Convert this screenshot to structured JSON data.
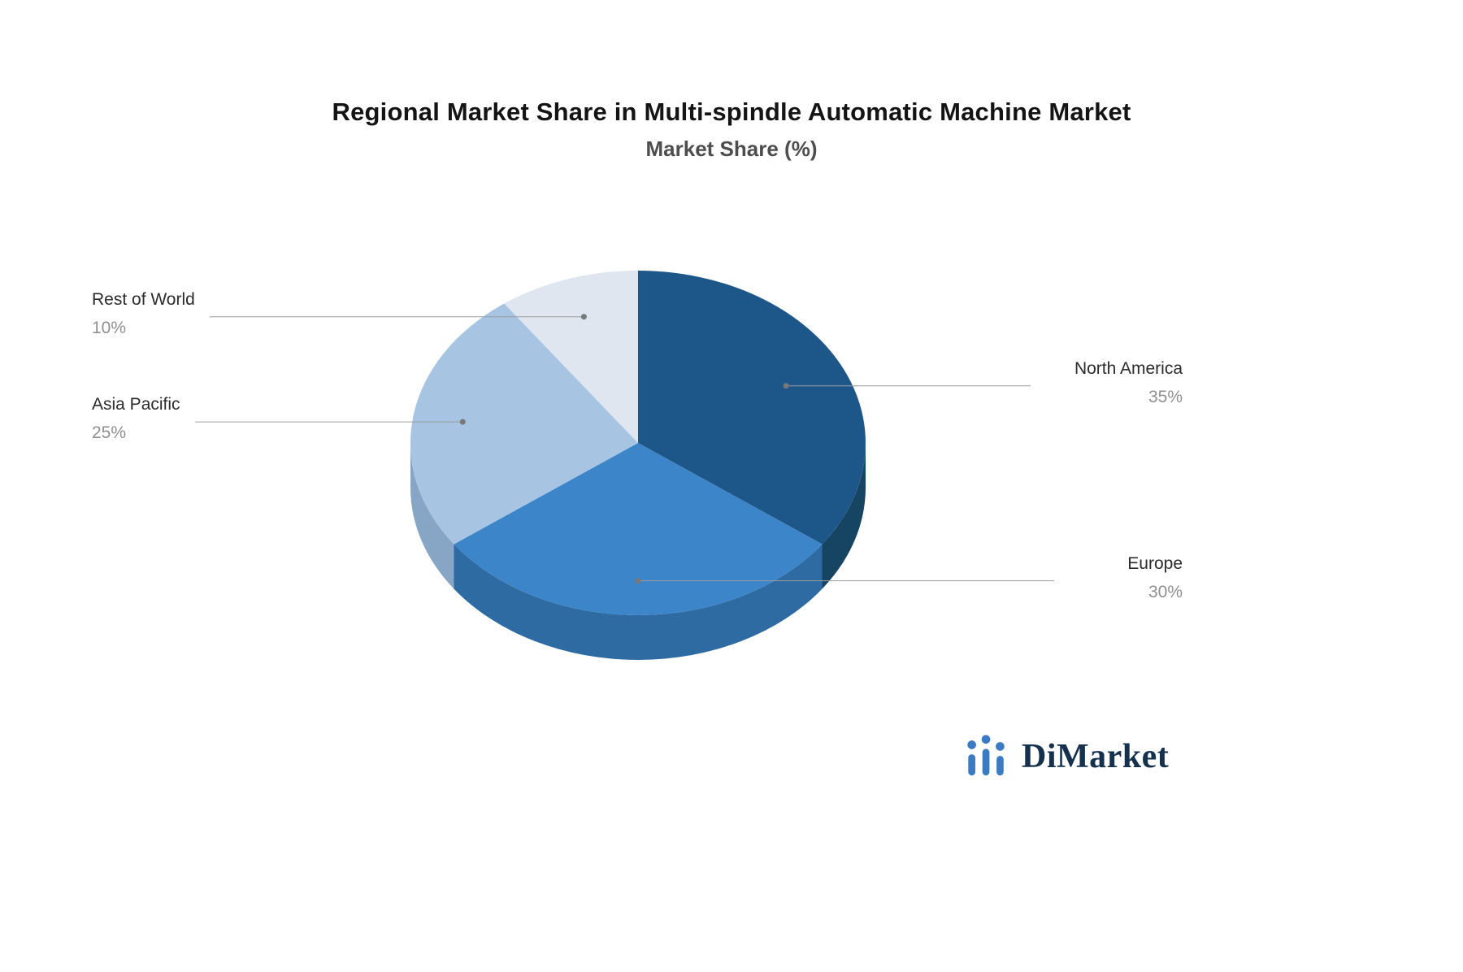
{
  "title": "Regional Market Share in Multi-spindle Automatic Machine Market",
  "subtitle": "Market Share (%)",
  "brand": {
    "name": "DiMarket",
    "icon": "bar-chart-logo-icon",
    "text_color": "#16314e",
    "icon_color": "#3a7bc4"
  },
  "chart_data": {
    "type": "pie",
    "title": "Regional Market Share in Multi-spindle Automatic Machine Market",
    "subtitle": "Market Share (%)",
    "unit": "%",
    "labels": [
      "North America",
      "Europe",
      "Asia Pacific",
      "Rest of World"
    ],
    "values": [
      35,
      30,
      25,
      10
    ],
    "display_values": [
      "35%",
      "30%",
      "25%",
      "10%"
    ],
    "colors": [
      "#1d5789",
      "#3d85c9",
      "#a7c4e2",
      "#dfe6f0"
    ],
    "side_colors": [
      "#164463",
      "#2f6ba3",
      "#87a5c4",
      "#c3cede"
    ],
    "start_angle_deg": 0,
    "direction": "clockwise",
    "effect": "3d",
    "legend_position": "none",
    "label_style": "callout-lines",
    "line_color": "#9b9b9b",
    "dot_color": "#787878"
  }
}
